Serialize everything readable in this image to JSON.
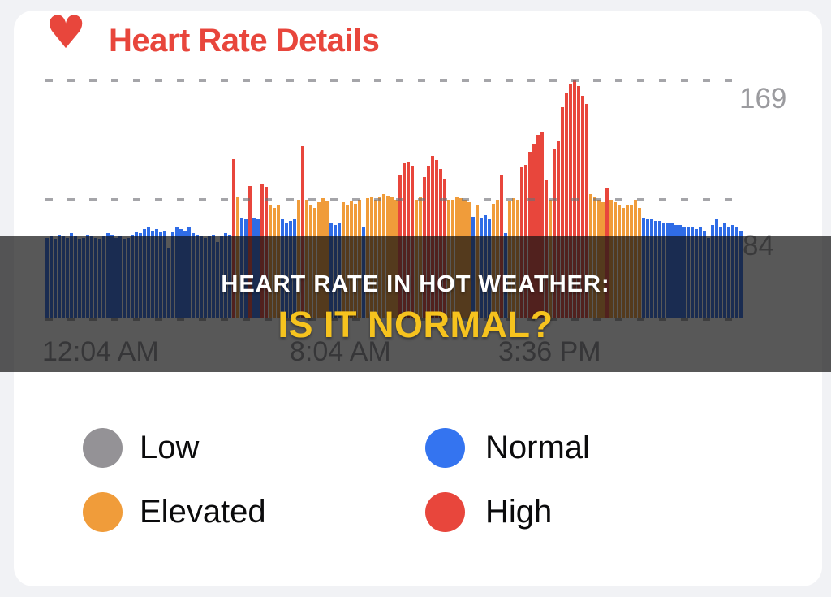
{
  "page": {
    "background": "#f1f2f5",
    "card_color": "#ffffff"
  },
  "header": {
    "title": "Heart Rate Details",
    "title_color": "#e8463c",
    "heart_icon_glyph": "♥",
    "heart_icon_color": "#e8463c"
  },
  "overlay": {
    "line1": "HEART RATE IN HOT WEATHER:",
    "line1_color": "#ffffff",
    "line2": "IS IT NORMAL?",
    "line2_color": "#f6c31e"
  },
  "legend": {
    "items": [
      {
        "label": "Low",
        "color": "#949296"
      },
      {
        "label": "Normal",
        "color": "#3474f0"
      },
      {
        "label": "Elevated",
        "color": "#f09c3a"
      },
      {
        "label": "High",
        "color": "#e8463c"
      }
    ]
  },
  "chart_data": {
    "type": "bar",
    "title": "Heart Rate Details",
    "ylim": [
      0,
      175
    ],
    "y_gridlines": [
      169,
      84
    ],
    "x_ticks": [
      "12:04 AM",
      "8:04 AM",
      "3:36 PM"
    ],
    "legend_position": "bottom",
    "grid": "dashed-horizontal",
    "categories_legend": [
      "Low",
      "Normal",
      "Elevated",
      "High"
    ],
    "colors": {
      "l": "#949296",
      "n": "#2f6ce6",
      "e": "#f09c3a",
      "h": "#e8463c"
    },
    "bars": [
      [
        57,
        "n"
      ],
      [
        58,
        "n"
      ],
      [
        56,
        "n"
      ],
      [
        59,
        "n"
      ],
      [
        58,
        "n"
      ],
      [
        57,
        "n"
      ],
      [
        60,
        "n"
      ],
      [
        58,
        "n"
      ],
      [
        56,
        "n"
      ],
      [
        57,
        "n"
      ],
      [
        59,
        "n"
      ],
      [
        58,
        "n"
      ],
      [
        57,
        "n"
      ],
      [
        56,
        "n"
      ],
      [
        58,
        "n"
      ],
      [
        60,
        "n"
      ],
      [
        59,
        "n"
      ],
      [
        57,
        "n"
      ],
      [
        58,
        "n"
      ],
      [
        56,
        "n"
      ],
      [
        57,
        "n"
      ],
      [
        59,
        "n"
      ],
      [
        61,
        "n"
      ],
      [
        60,
        "n"
      ],
      [
        63,
        "n"
      ],
      [
        64,
        "n"
      ],
      [
        62,
        "n"
      ],
      [
        63,
        "n"
      ],
      [
        61,
        "n"
      ],
      [
        62,
        "n"
      ],
      [
        50,
        "n"
      ],
      [
        61,
        "n"
      ],
      [
        64,
        "n"
      ],
      [
        63,
        "n"
      ],
      [
        62,
        "n"
      ],
      [
        64,
        "n"
      ],
      [
        60,
        "n"
      ],
      [
        59,
        "n"
      ],
      [
        58,
        "n"
      ],
      [
        57,
        "n"
      ],
      [
        58,
        "n"
      ],
      [
        59,
        "n"
      ],
      [
        54,
        "n"
      ],
      [
        58,
        "n"
      ],
      [
        60,
        "n"
      ],
      [
        59,
        "n"
      ],
      [
        113,
        "h"
      ],
      [
        86,
        "e"
      ],
      [
        71,
        "n"
      ],
      [
        70,
        "n"
      ],
      [
        94,
        "h"
      ],
      [
        71,
        "n"
      ],
      [
        70,
        "n"
      ],
      [
        95,
        "h"
      ],
      [
        93,
        "h"
      ],
      [
        80,
        "e"
      ],
      [
        78,
        "e"
      ],
      [
        80,
        "e"
      ],
      [
        70,
        "n"
      ],
      [
        68,
        "n"
      ],
      [
        69,
        "n"
      ],
      [
        70,
        "n"
      ],
      [
        84,
        "e"
      ],
      [
        122,
        "h"
      ],
      [
        84,
        "e"
      ],
      [
        80,
        "e"
      ],
      [
        78,
        "e"
      ],
      [
        82,
        "e"
      ],
      [
        85,
        "e"
      ],
      [
        83,
        "e"
      ],
      [
        68,
        "n"
      ],
      [
        66,
        "n"
      ],
      [
        68,
        "n"
      ],
      [
        82,
        "e"
      ],
      [
        80,
        "e"
      ],
      [
        83,
        "e"
      ],
      [
        81,
        "e"
      ],
      [
        84,
        "e"
      ],
      [
        64,
        "n"
      ],
      [
        85,
        "e"
      ],
      [
        86,
        "e"
      ],
      [
        84,
        "e"
      ],
      [
        86,
        "e"
      ],
      [
        88,
        "e"
      ],
      [
        87,
        "e"
      ],
      [
        86,
        "e"
      ],
      [
        84,
        "e"
      ],
      [
        101,
        "h"
      ],
      [
        110,
        "h"
      ],
      [
        111,
        "h"
      ],
      [
        108,
        "h"
      ],
      [
        84,
        "e"
      ],
      [
        86,
        "e"
      ],
      [
        100,
        "h"
      ],
      [
        108,
        "h"
      ],
      [
        115,
        "h"
      ],
      [
        112,
        "h"
      ],
      [
        106,
        "h"
      ],
      [
        99,
        "h"
      ],
      [
        84,
        "e"
      ],
      [
        84,
        "e"
      ],
      [
        86,
        "e"
      ],
      [
        85,
        "e"
      ],
      [
        84,
        "e"
      ],
      [
        82,
        "e"
      ],
      [
        72,
        "n"
      ],
      [
        80,
        "e"
      ],
      [
        71,
        "n"
      ],
      [
        73,
        "n"
      ],
      [
        70,
        "n"
      ],
      [
        81,
        "e"
      ],
      [
        84,
        "e"
      ],
      [
        101,
        "h"
      ],
      [
        60,
        "n"
      ],
      [
        83,
        "e"
      ],
      [
        85,
        "e"
      ],
      [
        84,
        "e"
      ],
      [
        107,
        "h"
      ],
      [
        109,
        "h"
      ],
      [
        118,
        "h"
      ],
      [
        124,
        "h"
      ],
      [
        130,
        "h"
      ],
      [
        132,
        "h"
      ],
      [
        98,
        "h"
      ],
      [
        84,
        "e"
      ],
      [
        120,
        "h"
      ],
      [
        126,
        "h"
      ],
      [
        150,
        "h"
      ],
      [
        160,
        "h"
      ],
      [
        166,
        "h"
      ],
      [
        169,
        "h"
      ],
      [
        165,
        "h"
      ],
      [
        158,
        "h"
      ],
      [
        152,
        "h"
      ],
      [
        88,
        "e"
      ],
      [
        86,
        "e"
      ],
      [
        84,
        "e"
      ],
      [
        82,
        "e"
      ],
      [
        92,
        "h"
      ],
      [
        84,
        "e"
      ],
      [
        82,
        "e"
      ],
      [
        80,
        "e"
      ],
      [
        78,
        "e"
      ],
      [
        80,
        "e"
      ],
      [
        80,
        "e"
      ],
      [
        84,
        "e"
      ],
      [
        78,
        "e"
      ],
      [
        71,
        "n"
      ],
      [
        70,
        "n"
      ],
      [
        70,
        "n"
      ],
      [
        69,
        "n"
      ],
      [
        69,
        "n"
      ],
      [
        68,
        "n"
      ],
      [
        68,
        "n"
      ],
      [
        67,
        "n"
      ],
      [
        66,
        "n"
      ],
      [
        66,
        "n"
      ],
      [
        65,
        "n"
      ],
      [
        64,
        "n"
      ],
      [
        64,
        "n"
      ],
      [
        63,
        "n"
      ],
      [
        65,
        "n"
      ],
      [
        62,
        "n"
      ],
      [
        57,
        "n"
      ],
      [
        66,
        "n"
      ],
      [
        70,
        "n"
      ],
      [
        64,
        "n"
      ],
      [
        68,
        "n"
      ],
      [
        65,
        "n"
      ],
      [
        66,
        "n"
      ],
      [
        64,
        "n"
      ],
      [
        62,
        "n"
      ]
    ]
  }
}
